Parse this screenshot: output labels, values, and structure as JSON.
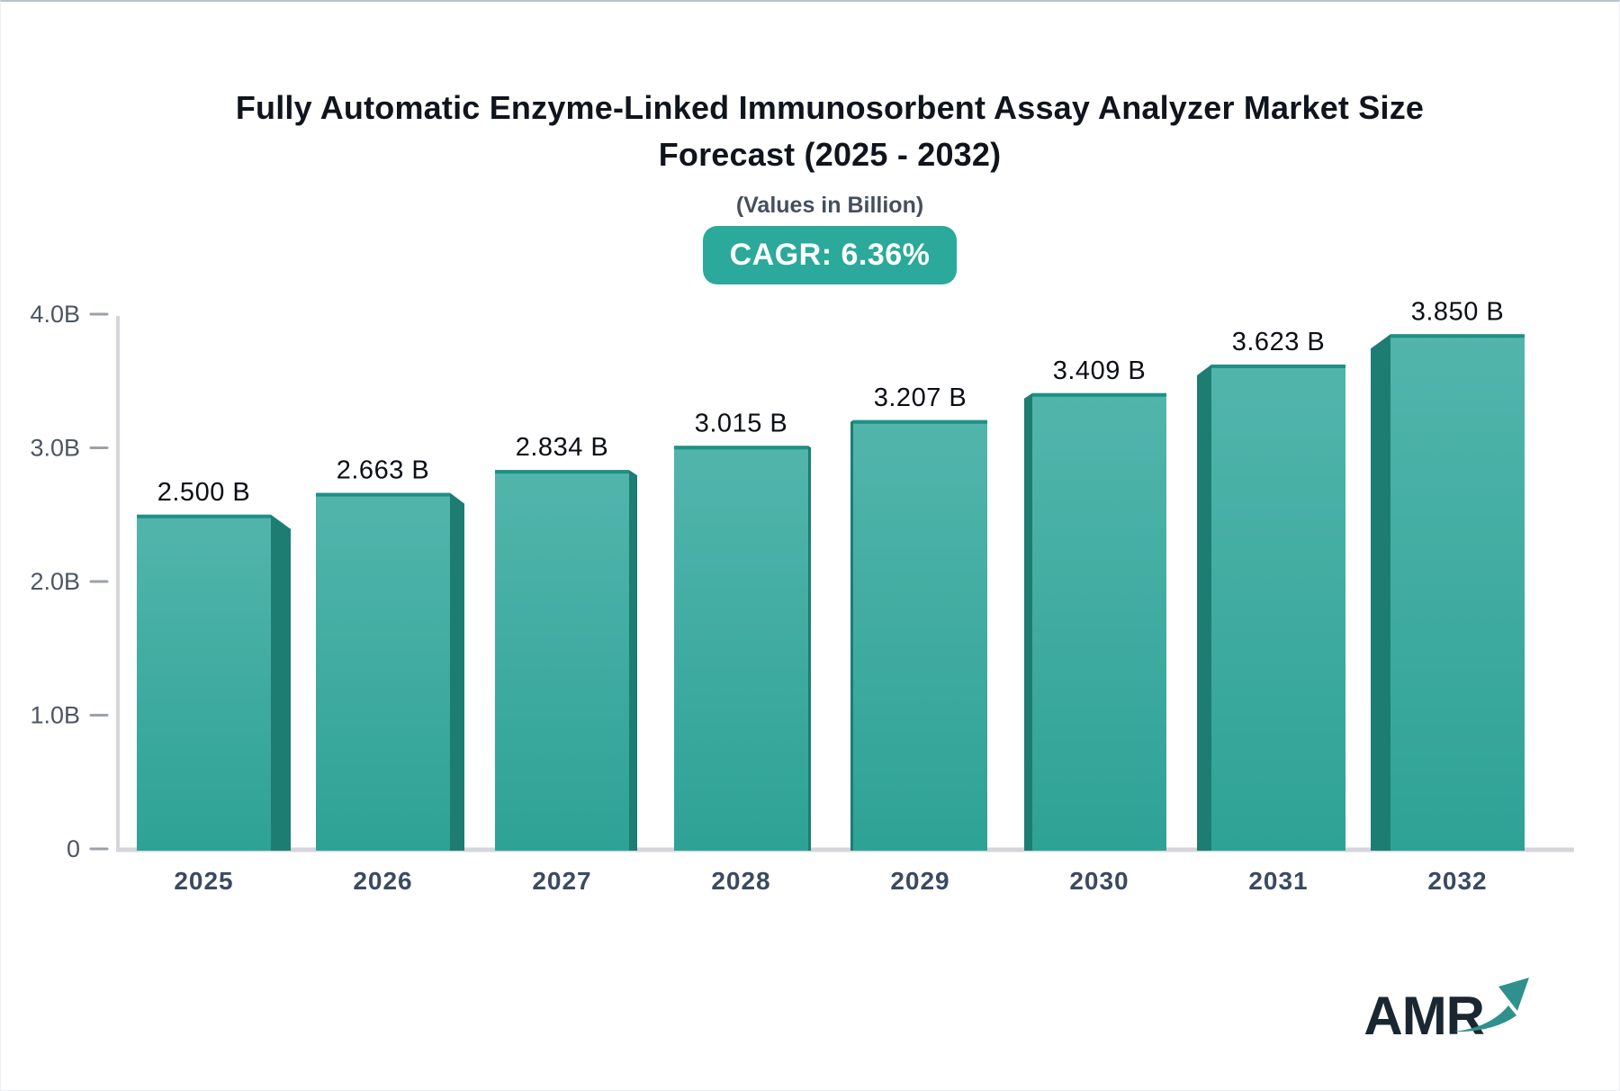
{
  "header": {
    "title_line1": "Fully Automatic Enzyme-Linked Immunosorbent Assay Analyzer Market Size",
    "title_line2": "Forecast (2025 - 2032)",
    "subtitle": "(Values in Billion)",
    "cagr_label": "CAGR: 6.36%"
  },
  "branding": {
    "logo_text": "AMR",
    "logo_icon": "growth-arrow-icon"
  },
  "colors": {
    "bar_face_top": "#52b5ac",
    "bar_face_bottom": "#2ea295",
    "bar_side": "#1d7d72",
    "bar_top_edge": "#1f9084",
    "badge_bg": "#2ba99a",
    "axis_line": "#d4d6db",
    "tick": "#9ba1ac",
    "title_text": "#0f141d",
    "subtitle_text": "#454f5e",
    "value_label": "#0b0e14",
    "year_label": "#3a4a63",
    "ytick_label": "#4c5565",
    "logo_text_color": "#1a2730",
    "logo_arrow_color": "#2f908d"
  },
  "chart_data": {
    "type": "bar",
    "title": "Fully Automatic Enzyme-Linked Immunosorbent Assay Analyzer Market Size Forecast (2025 - 2032)",
    "subtitle": "(Values in Billion)",
    "cagr": "6.36%",
    "categories": [
      "2025",
      "2026",
      "2027",
      "2028",
      "2029",
      "2030",
      "2031",
      "2032"
    ],
    "values": [
      2.5,
      2.663,
      2.834,
      3.015,
      3.207,
      3.409,
      3.623,
      3.85
    ],
    "value_labels": [
      "2.500 B",
      "2.663 B",
      "2.834 B",
      "3.015 B",
      "3.207 B",
      "3.409 B",
      "3.623 B",
      "3.850 B"
    ],
    "xlabel": "",
    "ylabel": "",
    "ylim": [
      0,
      4.0
    ],
    "yticks": [
      {
        "value": 4.0,
        "label": "4.0B"
      },
      {
        "value": 3.0,
        "label": "3.0B"
      },
      {
        "value": 2.0,
        "label": "2.0B"
      },
      {
        "value": 1.0,
        "label": "1.0B"
      },
      {
        "value": 0,
        "label": "0"
      }
    ],
    "grid": false,
    "legend": false,
    "bar_style": "3d-perspective"
  }
}
